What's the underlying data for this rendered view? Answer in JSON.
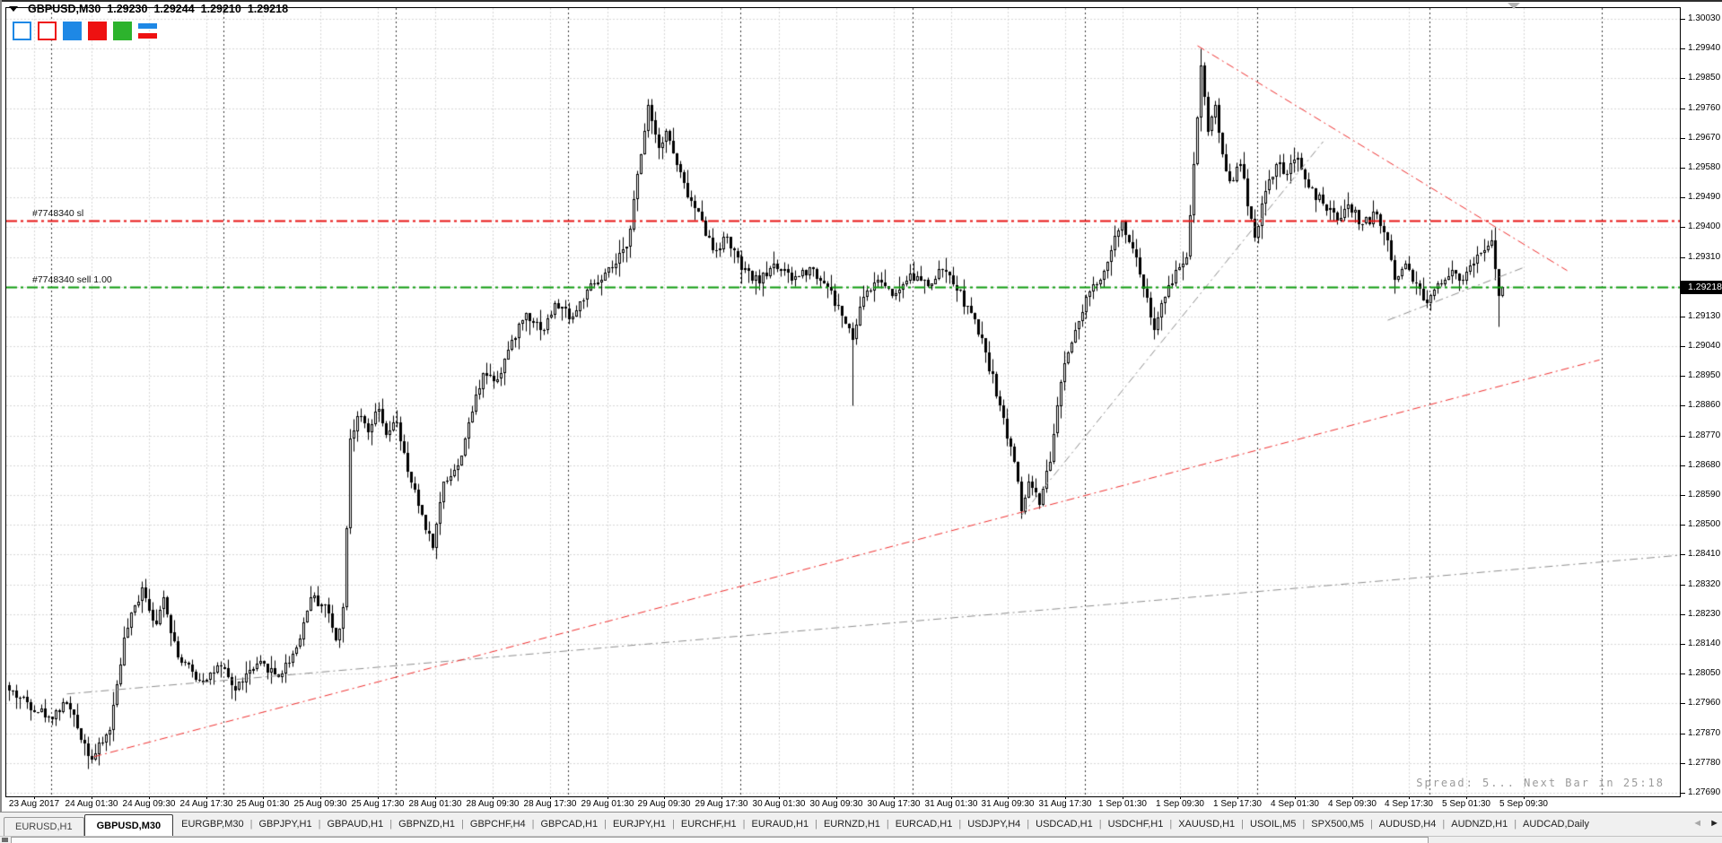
{
  "header": {
    "symbol": "GBPUSD,M30",
    "ohlc": {
      "open": "1.29230",
      "high": "1.29244",
      "low": "1.29210",
      "close": "1.29218"
    }
  },
  "toolbar": {
    "swatches": [
      {
        "name": "swatch-white-blue-border",
        "fill": "#ffffff",
        "border": "#1e88e5"
      },
      {
        "name": "swatch-white-red-border",
        "fill": "#ffffff",
        "border": "#ee1111"
      },
      {
        "name": "swatch-blue",
        "fill": "#1e88e5",
        "border": "#1e88e5"
      },
      {
        "name": "swatch-red",
        "fill": "#ee1111",
        "border": "#ee1111"
      },
      {
        "name": "swatch-green",
        "fill": "#2db32d",
        "border": "#2db32d"
      },
      {
        "name": "swatch-bicolor-bars",
        "dual": true,
        "top": "#1e88e5",
        "bottom": "#ee1111"
      }
    ]
  },
  "order_lines": [
    {
      "id": "sl",
      "label": "#7748340 sl",
      "price": 1.2942,
      "color": "#e81414",
      "style": "dash-dot"
    },
    {
      "id": "sell",
      "label": "#7748340 sell 1.00",
      "price": 1.29218,
      "color": "#0e9c0e",
      "style": "dash-dot"
    }
  ],
  "price_axis": {
    "current_price": "1.29218",
    "ticks": [
      "1.30030",
      "1.29940",
      "1.29850",
      "1.29760",
      "1.29670",
      "1.29580",
      "1.29490",
      "1.29400",
      "1.29310",
      "1.29130",
      "1.29040",
      "1.28950",
      "1.28860",
      "1.28770",
      "1.28680",
      "1.28590",
      "1.28500",
      "1.28410",
      "1.28320",
      "1.28230",
      "1.28140",
      "1.28050",
      "1.27960",
      "1.27870",
      "1.27780",
      "1.27690"
    ]
  },
  "time_axis": {
    "ticks": [
      "23 Aug 2017",
      "24 Aug 01:30",
      "24 Aug 09:30",
      "24 Aug 17:30",
      "25 Aug 01:30",
      "25 Aug 09:30",
      "25 Aug 17:30",
      "28 Aug 01:30",
      "28 Aug 09:30",
      "28 Aug 17:30",
      "29 Aug 01:30",
      "29 Aug 09:30",
      "29 Aug 17:30",
      "30 Aug 01:30",
      "30 Aug 09:30",
      "30 Aug 17:30",
      "31 Aug 01:30",
      "31 Aug 09:30",
      "31 Aug 17:30",
      "1 Sep 01:30",
      "1 Sep 09:30",
      "1 Sep 17:30",
      "4 Sep 01:30",
      "4 Sep 09:30",
      "4 Sep 17:30",
      "5 Sep 01:30",
      "5 Sep 09:30"
    ]
  },
  "status_bar": {
    "text": "Spread: 5... Next Bar in 25:18"
  },
  "tabs": {
    "items": [
      {
        "label": "EURUSD,H1",
        "style": "boxed"
      },
      {
        "label": "GBPUSD,M30",
        "style": "active"
      },
      {
        "label": "EURGBP,M30",
        "style": "flat"
      },
      {
        "label": "GBPJPY,H1",
        "style": "flat"
      },
      {
        "label": "GBPAUD,H1",
        "style": "flat"
      },
      {
        "label": "GBPNZD,H1",
        "style": "flat"
      },
      {
        "label": "GBPCHF,H4",
        "style": "flat"
      },
      {
        "label": "GBPCAD,H1",
        "style": "flat"
      },
      {
        "label": "EURJPY,H1",
        "style": "flat"
      },
      {
        "label": "EURCHF,H1",
        "style": "flat"
      },
      {
        "label": "EURAUD,H1",
        "style": "flat"
      },
      {
        "label": "EURNZD,H1",
        "style": "flat"
      },
      {
        "label": "EURCAD,H1",
        "style": "flat"
      },
      {
        "label": "USDJPY,H4",
        "style": "flat"
      },
      {
        "label": "USDCAD,H1",
        "style": "flat"
      },
      {
        "label": "USDCHF,H1",
        "style": "flat"
      },
      {
        "label": "XAUUSD,H1",
        "style": "flat"
      },
      {
        "label": "USOIL,M5",
        "style": "flat"
      },
      {
        "label": "SPX500,M5",
        "style": "flat"
      },
      {
        "label": "AUDUSD,H4",
        "style": "flat"
      },
      {
        "label": "AUDNZD,H1",
        "style": "flat"
      },
      {
        "label": "AUDCAD,Daily",
        "style": "flat"
      }
    ],
    "scroll_left_arrow": "◄",
    "scroll_right_arrow": "►"
  },
  "colors": {
    "grid": "#d8d8d8",
    "day_separator": "#383838",
    "candle": "#000000",
    "bull_fill": "#ffffff",
    "bear_fill": "#000000"
  },
  "chart_data": {
    "type": "candlestick",
    "symbol": "GBPUSD",
    "timeframe": "M30",
    "title": "GBPUSD,M30",
    "ylim": [
      1.2769,
      1.3003
    ],
    "price_step": 0.0009,
    "grid": true,
    "bars": 417,
    "seed": 42,
    "last_close": 1.29218,
    "close_path_anchors": [
      [
        0,
        1.28
      ],
      [
        11,
        1.2792
      ],
      [
        16,
        1.2796
      ],
      [
        23,
        1.2779
      ],
      [
        28,
        1.2788
      ],
      [
        32,
        1.2816
      ],
      [
        37,
        1.2831
      ],
      [
        41,
        1.282
      ],
      [
        43,
        1.2828
      ],
      [
        47,
        1.281
      ],
      [
        53,
        1.2803
      ],
      [
        59,
        1.2807
      ],
      [
        63,
        1.28
      ],
      [
        66,
        1.2805
      ],
      [
        71,
        1.2808
      ],
      [
        75,
        1.2804
      ],
      [
        80,
        1.2813
      ],
      [
        84,
        1.2828
      ],
      [
        88,
        1.2826
      ],
      [
        91,
        1.2815
      ],
      [
        93,
        1.2825
      ],
      [
        95,
        1.2876
      ],
      [
        97,
        1.2883
      ],
      [
        100,
        1.2878
      ],
      [
        103,
        1.2885
      ],
      [
        105,
        1.2877
      ],
      [
        108,
        1.2881
      ],
      [
        111,
        1.2866
      ],
      [
        118,
        1.2843
      ],
      [
        121,
        1.2863
      ],
      [
        125,
        1.2868
      ],
      [
        128,
        1.2881
      ],
      [
        132,
        1.2896
      ],
      [
        136,
        1.2894
      ],
      [
        140,
        1.2906
      ],
      [
        144,
        1.2914
      ],
      [
        149,
        1.2909
      ],
      [
        152,
        1.2917
      ],
      [
        157,
        1.2913
      ],
      [
        161,
        1.2921
      ],
      [
        165,
        1.2924
      ],
      [
        169,
        1.2929
      ],
      [
        172,
        1.2934
      ],
      [
        176,
        1.2962
      ],
      [
        178,
        1.2977
      ],
      [
        181,
        1.2964
      ],
      [
        183,
        1.2969
      ],
      [
        186,
        1.2959
      ],
      [
        189,
        1.2949
      ],
      [
        193,
        1.2942
      ],
      [
        196,
        1.2933
      ],
      [
        200,
        1.2937
      ],
      [
        204,
        1.2927
      ],
      [
        209,
        1.2923
      ],
      [
        213,
        1.2929
      ],
      [
        218,
        1.2924
      ],
      [
        223,
        1.2928
      ],
      [
        228,
        1.2922
      ],
      [
        232,
        1.2913
      ],
      [
        235,
        1.2906
      ],
      [
        238,
        1.2919
      ],
      [
        242,
        1.2924
      ],
      [
        247,
        1.292
      ],
      [
        251,
        1.2926
      ],
      [
        256,
        1.2922
      ],
      [
        260,
        1.2927
      ],
      [
        264,
        1.2921
      ],
      [
        268,
        1.2914
      ],
      [
        272,
        1.2902
      ],
      [
        276,
        1.2886
      ],
      [
        280,
        1.2869
      ],
      [
        282,
        1.2854
      ],
      [
        284,
        1.2863
      ],
      [
        287,
        1.2856
      ],
      [
        290,
        1.2869
      ],
      [
        292,
        1.2886
      ],
      [
        294,
        1.2899
      ],
      [
        297,
        1.2909
      ],
      [
        300,
        1.2919
      ],
      [
        304,
        1.2924
      ],
      [
        307,
        1.2933
      ],
      [
        310,
        1.2942
      ],
      [
        314,
        1.2931
      ],
      [
        319,
        1.2909
      ],
      [
        322,
        1.2919
      ],
      [
        325,
        1.2927
      ],
      [
        328,
        1.2931
      ],
      [
        330,
        1.2959
      ],
      [
        332,
        1.2989
      ],
      [
        334,
        1.2969
      ],
      [
        336,
        1.2977
      ],
      [
        338,
        1.2962
      ],
      [
        340,
        1.2954
      ],
      [
        343,
        1.2959
      ],
      [
        347,
        1.2937
      ],
      [
        350,
        1.2951
      ],
      [
        353,
        1.2959
      ],
      [
        356,
        1.2956
      ],
      [
        359,
        1.2961
      ],
      [
        362,
        1.2952
      ],
      [
        366,
        1.2947
      ],
      [
        370,
        1.2942
      ],
      [
        373,
        1.2947
      ],
      [
        377,
        1.2941
      ],
      [
        381,
        1.2944
      ],
      [
        384,
        1.2936
      ],
      [
        386,
        1.2924
      ],
      [
        389,
        1.2929
      ],
      [
        392,
        1.2923
      ],
      [
        395,
        1.2917
      ],
      [
        398,
        1.2923
      ],
      [
        402,
        1.2927
      ],
      [
        405,
        1.2924
      ],
      [
        408,
        1.2929
      ],
      [
        411,
        1.2933
      ],
      [
        413,
        1.2936
      ],
      [
        415,
        1.2919
      ],
      [
        416,
        1.29218
      ]
    ],
    "wick_extremes": [
      [
        23,
        "L",
        1.2778
      ],
      [
        178,
        "H",
        1.2979
      ],
      [
        235,
        "L",
        1.2886
      ],
      [
        282,
        "L",
        1.2852
      ],
      [
        332,
        "H",
        1.2994
      ],
      [
        415,
        "L",
        1.291
      ]
    ],
    "trendlines": [
      {
        "name": "support-gray-long",
        "points": [
          [
            16,
            1.2799
          ],
          [
            466,
            1.2841
          ]
        ],
        "color": "#8f8f8f"
      },
      {
        "name": "support-red-rising",
        "points": [
          [
            23.5,
            1.278
          ],
          [
            443,
            1.29
          ]
        ],
        "color": "#f03030"
      },
      {
        "name": "resistance-red-falling",
        "points": [
          [
            331,
            1.2995
          ],
          [
            434,
            1.2927
          ]
        ],
        "color": "#f03030"
      },
      {
        "name": "trend-gray-steep",
        "points": [
          [
            282,
            1.2853
          ],
          [
            366,
            1.2966
          ]
        ],
        "color": "#8f8f8f"
      },
      {
        "name": "trend-gray-short",
        "points": [
          [
            384,
            1.2912
          ],
          [
            422,
            1.2928
          ]
        ],
        "color": "#8f8f8f"
      }
    ]
  }
}
